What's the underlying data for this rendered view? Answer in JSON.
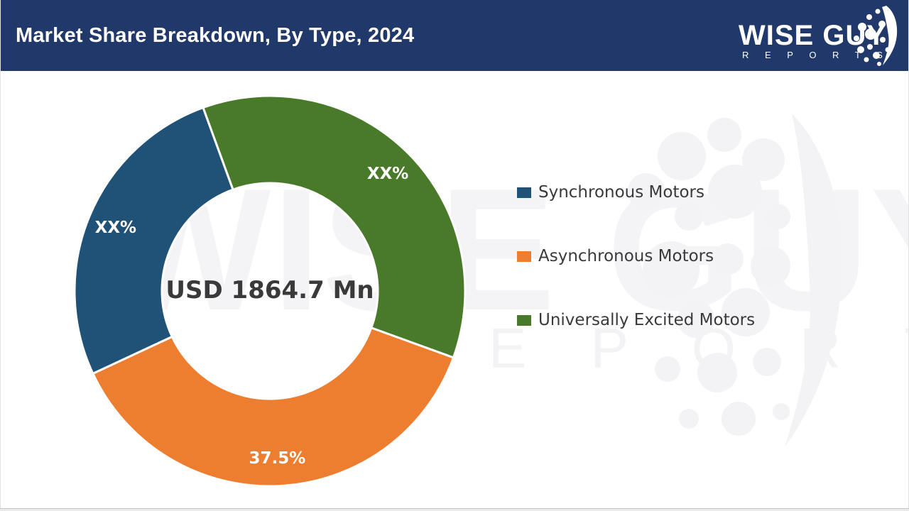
{
  "header": {
    "title": "Market Share Breakdown, By Type, 2024",
    "bg_color": "#20386a",
    "logo": {
      "line1": "WISE GUY",
      "line2": "R E P O R T S"
    }
  },
  "chart_data": {
    "type": "pie",
    "donut": true,
    "title": "Market Share Breakdown, By Type, 2024",
    "center_label": "USD 1864.7 Mn",
    "start_angle_deg": -20,
    "direction": "clockwise",
    "legend_position": "right",
    "slices": [
      {
        "name": "Universally Excited Motors",
        "label": "XX%",
        "value_pct": 36.1,
        "color": "#497a29"
      },
      {
        "name": "Asynchronous Motors",
        "label": "37.5%",
        "value_pct": 37.5,
        "color": "#ed7d2f"
      },
      {
        "name": "Synchronous Motors",
        "label": "XX%",
        "value_pct": 26.4,
        "color": "#205177"
      }
    ]
  },
  "legend": {
    "items": [
      {
        "label": "Synchronous Motors",
        "color": "#205177"
      },
      {
        "label": "Asynchronous Motors",
        "color": "#ed7d2f"
      },
      {
        "label": "Universally Excited Motors",
        "color": "#497a29"
      }
    ]
  },
  "watermark": {
    "line1": "WISE GUY",
    "line2": "R E P O R T S"
  }
}
